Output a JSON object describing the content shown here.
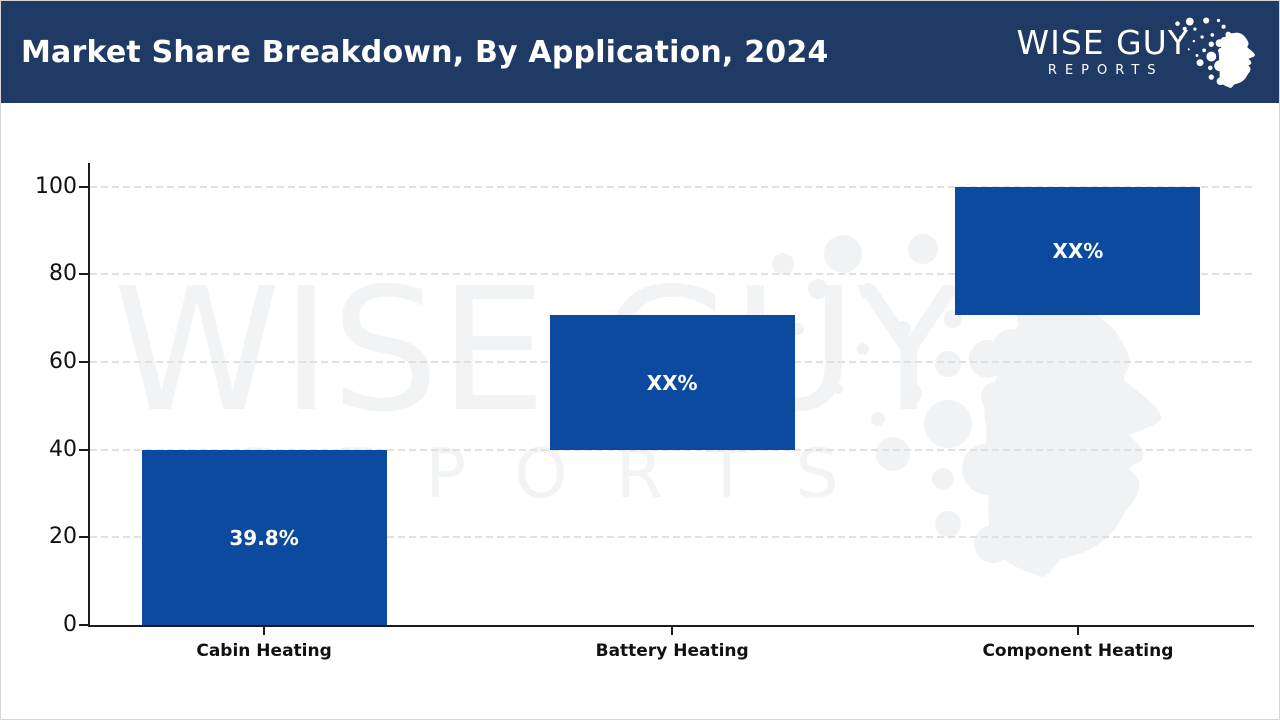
{
  "header": {
    "title": "Market Share Breakdown, By Application, 2024",
    "background_color": "#1f3a64",
    "logo": {
      "wordmark": "WISE GUY",
      "subtext": "REPORTS"
    }
  },
  "watermark": {
    "line1": "WISE GUY",
    "line2": "REPORTS"
  },
  "chart_data": {
    "type": "bar",
    "variant": "waterfall",
    "title": "Market Share Breakdown, By Application, 2024",
    "categories": [
      "Cabin Heating",
      "Battery Heating",
      "Component Heating"
    ],
    "segments": [
      {
        "category": "Cabin Heating",
        "start": 0,
        "end": 39.8,
        "label": "39.8%"
      },
      {
        "category": "Battery Heating",
        "start": 39.8,
        "end": 70.7,
        "label": "XX%"
      },
      {
        "category": "Component Heating",
        "start": 70.7,
        "end": 100,
        "label": "XX%"
      }
    ],
    "y_ticks": [
      0,
      20,
      40,
      60,
      80,
      100
    ],
    "ylim": [
      0,
      105
    ],
    "xlabel": "",
    "ylabel": "",
    "grid": "horizontal-dashed",
    "legend": "none",
    "bar_color": "#0b4a9e",
    "bar_label_color": "#ffffff",
    "axis_color": "#1c1c1c",
    "gridline_color": "#e1e1e1",
    "tick_label_color": "#111111"
  }
}
